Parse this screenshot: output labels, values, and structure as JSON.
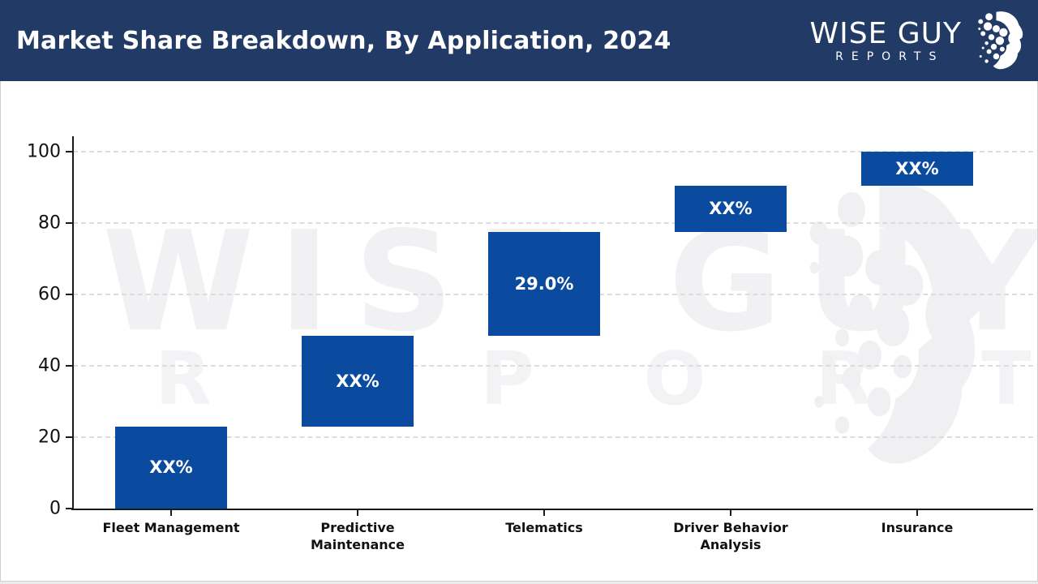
{
  "header": {
    "title": "Market Share Breakdown, By Application, 2024"
  },
  "logo": {
    "line1": "WISE GUY",
    "line2": "REPORTS",
    "icon": "dotted-head-profile"
  },
  "watermark": {
    "line1": "WISE GUY",
    "line2": "R E P O R T S",
    "icon": "dotted-head-profile"
  },
  "colors": {
    "header_bg": "#213a66",
    "bar_fill": "#0a4b9f",
    "bar_label": "#ffffff",
    "axis": "#1a1a1a",
    "gridline": "#dcdcdc",
    "watermark": "#f1f1f3"
  },
  "chart_data": {
    "type": "bar",
    "subtype": "waterfall",
    "title": "Market Share Breakdown, By Application, 2024",
    "xlabel": "",
    "ylabel": "",
    "ylim": [
      0,
      105
    ],
    "yticks": [
      0,
      20,
      40,
      60,
      80,
      100
    ],
    "grid": "horizontal-dashed",
    "legend": "none",
    "categories": [
      "Fleet Management",
      "Predictive Maintenance",
      "Telematics",
      "Driver Behavior Analysis",
      "Insurance"
    ],
    "bars": [
      {
        "category": "Fleet Management",
        "label_lines": [
          "Fleet Management"
        ],
        "start": 0,
        "end": 23,
        "value_label": "XX%"
      },
      {
        "category": "Predictive Maintenance",
        "label_lines": [
          "Predictive",
          "Maintenance"
        ],
        "start": 23,
        "end": 48.5,
        "value_label": "XX%"
      },
      {
        "category": "Telematics",
        "label_lines": [
          "Telematics"
        ],
        "start": 48.5,
        "end": 77.5,
        "value_label": "29.0%"
      },
      {
        "category": "Driver Behavior Analysis",
        "label_lines": [
          "Driver Behavior",
          "Analysis"
        ],
        "start": 77.5,
        "end": 90.5,
        "value_label": "XX%"
      },
      {
        "category": "Insurance",
        "label_lines": [
          "Insurance"
        ],
        "start": 90.5,
        "end": 100,
        "value_label": "XX%"
      }
    ]
  }
}
